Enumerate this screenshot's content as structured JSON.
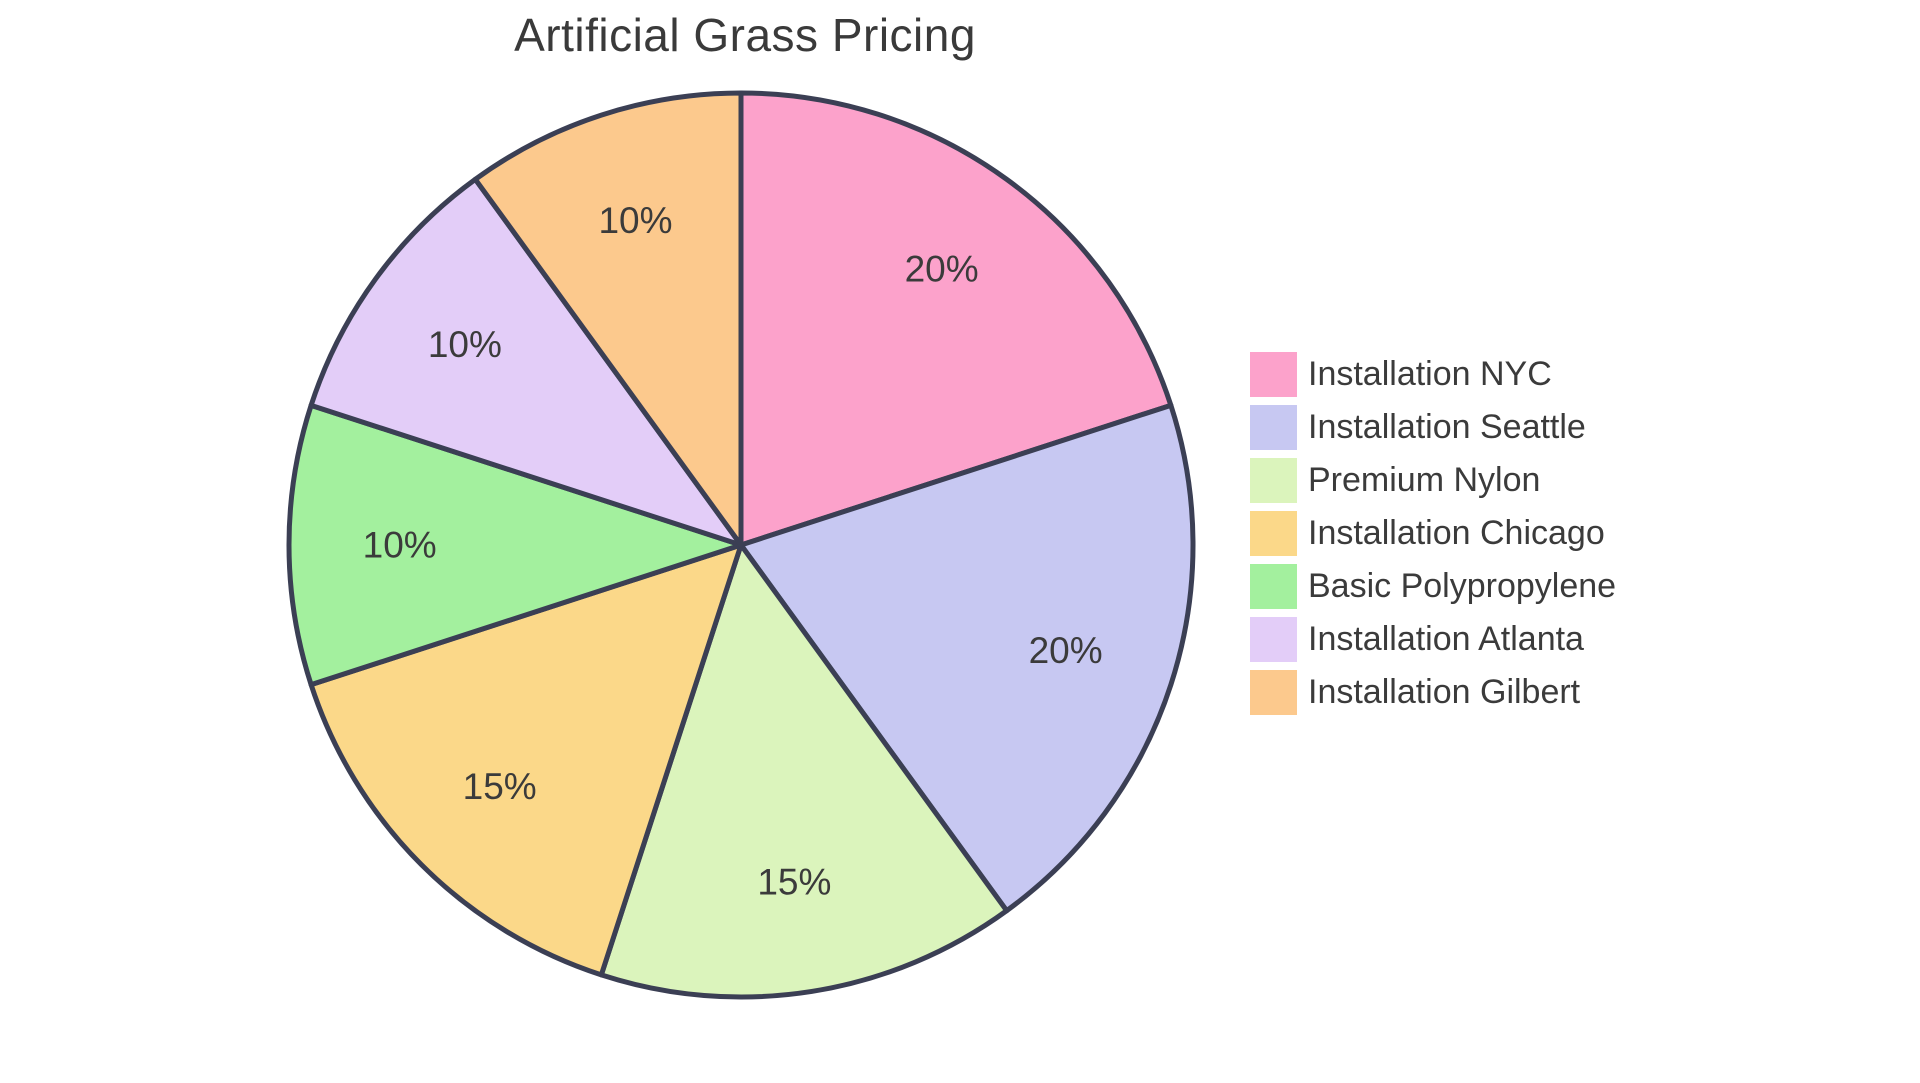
{
  "chart_data": {
    "type": "pie",
    "title": "Artificial Grass Pricing",
    "start_angle_deg": 0,
    "direction": "clockwise",
    "slices": [
      {
        "label": "Installation NYC",
        "value": 20,
        "percent_label": "20%",
        "color": "#FCA2CB"
      },
      {
        "label": "Installation Seattle",
        "value": 20,
        "percent_label": "20%",
        "color": "#C7C8F2"
      },
      {
        "label": "Premium Nylon",
        "value": 15,
        "percent_label": "15%",
        "color": "#DBF4BC"
      },
      {
        "label": "Installation Chicago",
        "value": 15,
        "percent_label": "15%",
        "color": "#FBD889"
      },
      {
        "label": "Basic Polypropylene",
        "value": 10,
        "percent_label": "10%",
        "color": "#A3F09E"
      },
      {
        "label": "Installation Atlanta",
        "value": 10,
        "percent_label": "10%",
        "color": "#E3CDF8"
      },
      {
        "label": "Installation Gilbert",
        "value": 10,
        "percent_label": "10%",
        "color": "#FCC98D"
      }
    ],
    "stroke_color": "#3B3F54",
    "stroke_width": 5,
    "label_color": "#3B3B3B",
    "title_color": "#3A3A3A",
    "legend_text_color": "#3B3B3B",
    "background": "#FFFFFF",
    "legend_position": "right"
  }
}
